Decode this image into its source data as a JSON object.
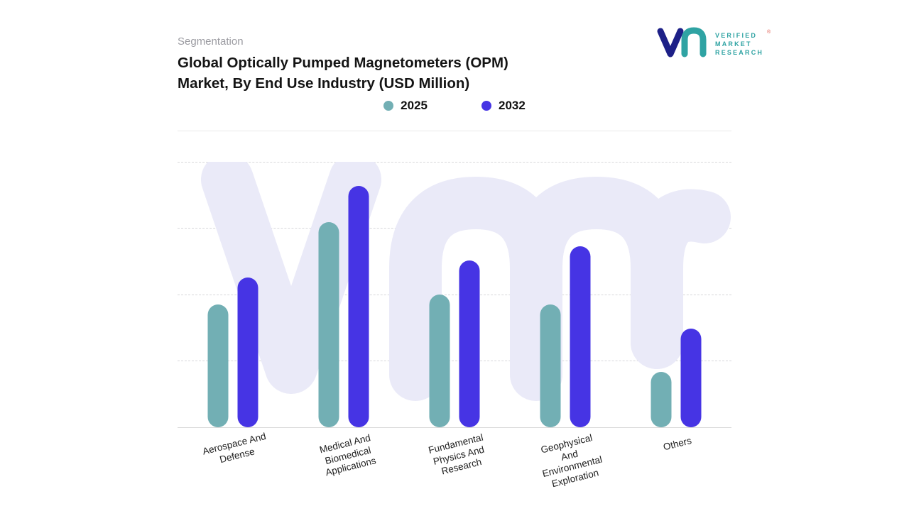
{
  "header": {
    "eyebrow": "Segmentation",
    "title": "Global Optically Pumped Magnetometers (OPM)\nMarket, By End Use Industry (USD Million)"
  },
  "brand": {
    "lines": [
      "VERIFIED",
      "MARKET",
      "RESEARCH"
    ],
    "registered": "®",
    "navy": "#1d2087",
    "teal": "#2fa3a3"
  },
  "chart_data": {
    "type": "bar",
    "title": "Global Optically Pumped Magnetometers (OPM) Market, By End Use Industry (USD Million)",
    "units": "USD Million",
    "categories": [
      "Aerospace And\nDefense",
      "Medical And\nBiomedical\nApplications",
      "Fundamental\nPhysics And\nResearch",
      "Geophysical\nAnd\nEnvironmental\nExploration",
      "Others"
    ],
    "series": [
      {
        "name": "2025",
        "color": "#72AFB4",
        "values": [
          51,
          85,
          55,
          51,
          23
        ]
      },
      {
        "name": "2032",
        "color": "#4634E4",
        "values": [
          62,
          100,
          69,
          75,
          41
        ]
      }
    ],
    "ylim": [
      0,
      110
    ],
    "y_axis_labels_shown": false,
    "grid": "dashed-horizontal",
    "legend_position": "top",
    "watermark": "vm",
    "note": "values estimated from bar heights; no numeric axis labels visible"
  }
}
